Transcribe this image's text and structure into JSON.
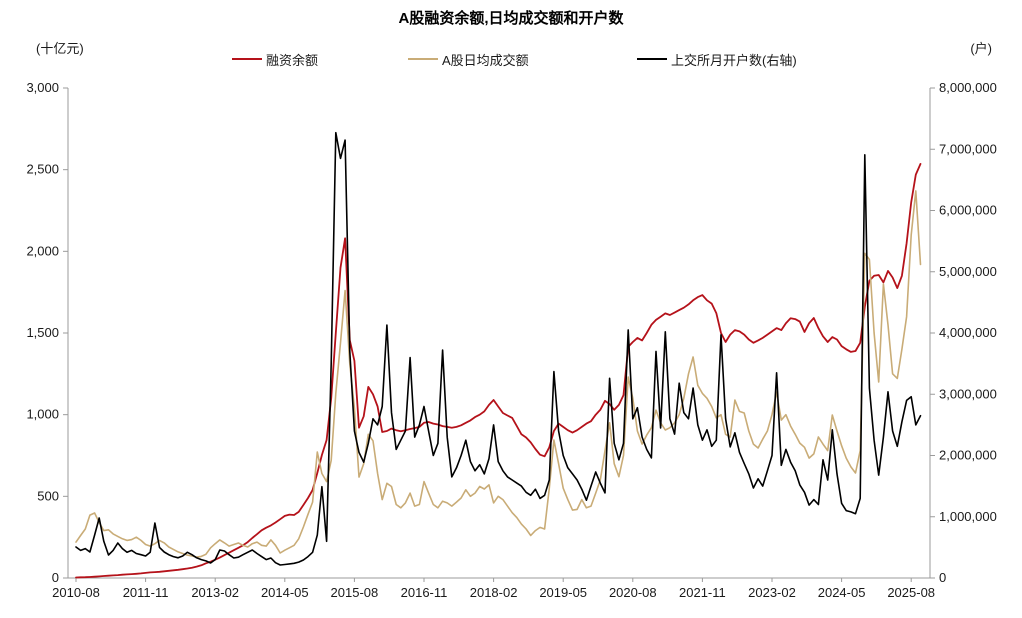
{
  "chart_data": {
    "type": "line",
    "title": "A股融资余额,日均成交额和开户数",
    "x_start": "2010-08",
    "x_frequency": "monthly",
    "x_tick_labels": [
      "2010-08",
      "2011-11",
      "2013-02",
      "2014-05",
      "2015-08",
      "2016-11",
      "2018-02",
      "2019-05",
      "2020-08",
      "2021-11",
      "2023-02",
      "2024-05",
      "2025-08"
    ],
    "x_tick_month_indices": [
      0,
      15,
      30,
      45,
      60,
      75,
      90,
      105,
      120,
      135,
      150,
      165,
      180
    ],
    "left_axis": {
      "label": "(十亿元)",
      "min": 0,
      "max": 3000,
      "tick_step": 500,
      "tick_labels": [
        "0",
        "500",
        "1,000",
        "1,500",
        "2,000",
        "2,500",
        "3,000"
      ]
    },
    "right_axis": {
      "label": "(户)",
      "min": 0,
      "max": 8000000,
      "tick_step": 1000000,
      "tick_labels": [
        "0",
        "1,000,000",
        "2,000,000",
        "3,000,000",
        "4,000,000",
        "5,000,000",
        "6,000,000",
        "7,000,000",
        "8,000,000"
      ]
    },
    "grid": "off",
    "legend_position": "top",
    "series": [
      {
        "id": "financing_balance",
        "name": "融资余额",
        "axis": "left",
        "color": "#b5121a",
        "values": [
          3,
          4,
          5,
          6,
          8,
          10,
          12,
          14,
          16,
          18,
          20,
          22,
          24,
          26,
          28,
          31,
          34,
          36,
          38,
          41,
          44,
          47,
          50,
          54,
          58,
          63,
          70,
          78,
          90,
          100,
          112,
          125,
          140,
          155,
          170,
          185,
          200,
          220,
          245,
          268,
          292,
          308,
          322,
          340,
          360,
          380,
          388,
          386,
          405,
          447,
          490,
          539,
          643,
          753,
          845,
          1100,
          1500,
          1900,
          2080,
          1456,
          1330,
          920,
          990,
          1170,
          1125,
          1050,
          894,
          900,
          915,
          905,
          898,
          905,
          912,
          918,
          925,
          950,
          955,
          945,
          940,
          930,
          925,
          920,
          925,
          935,
          950,
          965,
          985,
          1000,
          1020,
          1060,
          1090,
          1050,
          1010,
          995,
          980,
          930,
          880,
          860,
          830,
          790,
          755,
          745,
          800,
          900,
          945,
          925,
          905,
          890,
          905,
          925,
          945,
          960,
          1000,
          1030,
          1085,
          1065,
          1030,
          1060,
          1120,
          1415,
          1445,
          1470,
          1455,
          1500,
          1550,
          1580,
          1600,
          1620,
          1610,
          1625,
          1640,
          1655,
          1675,
          1700,
          1720,
          1732,
          1700,
          1680,
          1622,
          1500,
          1445,
          1490,
          1518,
          1510,
          1490,
          1460,
          1440,
          1455,
          1470,
          1490,
          1510,
          1530,
          1518,
          1560,
          1590,
          1585,
          1570,
          1506,
          1560,
          1592,
          1530,
          1480,
          1445,
          1475,
          1460,
          1420,
          1400,
          1384,
          1390,
          1440,
          1660,
          1820,
          1850,
          1855,
          1810,
          1880,
          1840,
          1775,
          1850,
          2050,
          2300,
          2470,
          2535
        ]
      },
      {
        "id": "daily_turnover",
        "name": "A股日均成交额",
        "axis": "left",
        "color": "#c9ac77",
        "values": [
          220,
          260,
          300,
          385,
          398,
          340,
          290,
          295,
          270,
          255,
          240,
          230,
          235,
          250,
          230,
          205,
          195,
          210,
          230,
          215,
          190,
          175,
          160,
          150,
          140,
          135,
          128,
          132,
          145,
          185,
          210,
          233,
          215,
          195,
          205,
          214,
          200,
          190,
          210,
          220,
          200,
          195,
          233,
          200,
          153,
          170,
          185,
          200,
          240,
          312,
          390,
          465,
          771,
          640,
          590,
          720,
          1130,
          1440,
          1760,
          1310,
          1040,
          618,
          700,
          880,
          840,
          640,
          480,
          580,
          560,
          450,
          430,
          460,
          520,
          440,
          450,
          590,
          520,
          450,
          430,
          470,
          460,
          440,
          465,
          490,
          540,
          500,
          520,
          560,
          545,
          570,
          460,
          500,
          480,
          440,
          400,
          370,
          330,
          300,
          260,
          290,
          310,
          300,
          550,
          845,
          700,
          550,
          480,
          416,
          420,
          480,
          430,
          440,
          520,
          600,
          780,
          950,
          700,
          620,
          750,
          1230,
          1100,
          900,
          820,
          875,
          920,
          1028,
          950,
          906,
          920,
          950,
          1000,
          1100,
          1250,
          1353,
          1180,
          1130,
          1100,
          1050,
          980,
          1000,
          880,
          863,
          1089,
          1020,
          1010,
          900,
          820,
          796,
          850,
          900,
          1000,
          1138,
          967,
          1000,
          930,
          880,
          826,
          800,
          734,
          760,
          863,
          820,
          780,
          998,
          900,
          810,
          734,
          680,
          643,
          780,
          1988,
          1950,
          1500,
          1200,
          1800,
          1550,
          1250,
          1222,
          1400,
          1600,
          2100,
          2370,
          1920
        ]
      },
      {
        "id": "sse_new_accounts",
        "name": "上交所月开户数(右轴)",
        "axis": "right",
        "color": "#000000",
        "values": [
          506000,
          450000,
          480000,
          424000,
          700000,
          980000,
          600000,
          376000,
          450000,
          571000,
          480000,
          420000,
          450000,
          400000,
          380000,
          360000,
          420000,
          898000,
          500000,
          424000,
          380000,
          350000,
          330000,
          360000,
          420000,
          380000,
          330000,
          300000,
          280000,
          245000,
          300000,
          457000,
          440000,
          380000,
          327000,
          340000,
          380000,
          420000,
          457000,
          400000,
          350000,
          300000,
          327000,
          250000,
          212000,
          220000,
          230000,
          240000,
          260000,
          294000,
          350000,
          420000,
          700000,
          1490000,
          600000,
          3500000,
          7270000,
          6850000,
          7150000,
          3700000,
          2400000,
          2050000,
          1890000,
          2200000,
          2600000,
          2500000,
          2800000,
          4130000,
          2700000,
          2100000,
          2250000,
          2400000,
          3600000,
          2300000,
          2500000,
          2800000,
          2400000,
          2000000,
          2200000,
          3720000,
          2300000,
          1650000,
          1800000,
          2000000,
          2250000,
          1900000,
          1750000,
          1850000,
          1700000,
          1950000,
          2500000,
          1900000,
          1750000,
          1650000,
          1600000,
          1550000,
          1500000,
          1400000,
          1350000,
          1450000,
          1300000,
          1350000,
          1600000,
          3370000,
          2400000,
          2000000,
          1800000,
          1700000,
          1600000,
          1450000,
          1270000,
          1500000,
          1730000,
          1550000,
          1390000,
          3260000,
          2200000,
          1930000,
          2200000,
          4050000,
          2600000,
          2780000,
          2300000,
          2100000,
          1960000,
          3700000,
          2450000,
          4020000,
          2600000,
          2350000,
          3180000,
          2700000,
          2600000,
          3100000,
          2500000,
          2250000,
          2420000,
          2150000,
          2250000,
          3970000,
          2600000,
          2140000,
          2370000,
          2050000,
          1870000,
          1700000,
          1470000,
          1620000,
          1500000,
          1750000,
          2000000,
          3350000,
          1840000,
          2100000,
          1890000,
          1750000,
          1520000,
          1400000,
          1190000,
          1280000,
          1200000,
          1930000,
          1600000,
          2420000,
          1700000,
          1220000,
          1100000,
          1080000,
          1050000,
          1300000,
          6910000,
          3100000,
          2250000,
          1680000,
          2300000,
          3040000,
          2400000,
          2150000,
          2550000,
          2900000,
          2960000,
          2500000,
          2650000
        ]
      }
    ]
  }
}
